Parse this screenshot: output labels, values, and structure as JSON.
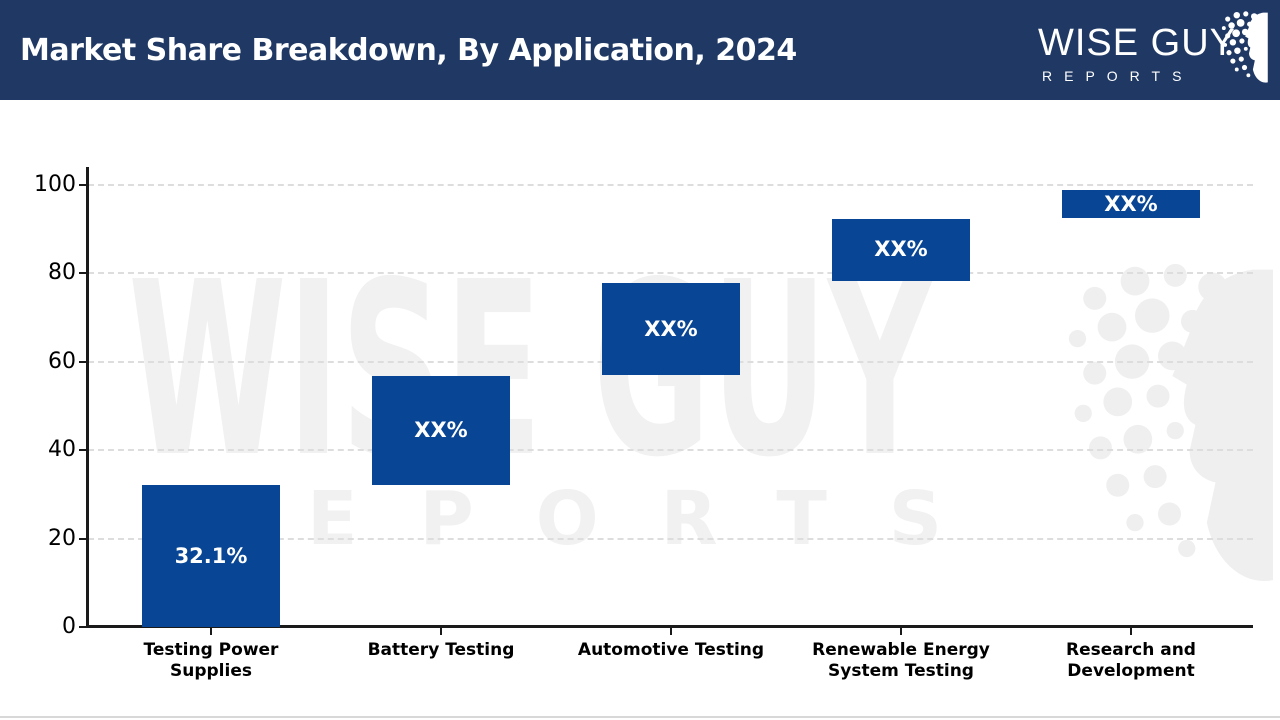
{
  "header": {
    "title": "Market Share Breakdown, By Application, 2024",
    "logo": {
      "line1": "WISE GUY",
      "line2": "REPORTS"
    }
  },
  "watermark": {
    "line1": "WISE GUY",
    "line2": "REPORTS"
  },
  "colors": {
    "header_bg": "#1F3864",
    "bar": "#084594",
    "grid": "#DDDDDD",
    "axis": "#1A1A1A",
    "bar_label": "#FFFFFF",
    "watermark": "#F1F1F1"
  },
  "chart_data": {
    "type": "bar",
    "subtype": "waterfall",
    "title": "Market Share Breakdown, By Application, 2024",
    "categories": [
      "Testing Power Supplies",
      "Battery Testing",
      "Automotive Testing",
      "Renewable Energy System Testing",
      "Research and Development"
    ],
    "segments": [
      {
        "category": "Testing Power Supplies",
        "start": 0,
        "end": 32.1,
        "label": "32.1%"
      },
      {
        "category": "Battery Testing",
        "start": 32.1,
        "end": 56.9,
        "label": "XX%"
      },
      {
        "category": "Automotive Testing",
        "start": 56.9,
        "end": 77.9,
        "label": "XX%"
      },
      {
        "category": "Renewable Energy System Testing",
        "start": 78.3,
        "end": 92.4,
        "label": "XX%"
      },
      {
        "category": "Research and Development",
        "start": 92.5,
        "end": 98.9,
        "label": "XX%"
      }
    ],
    "ylim": [
      0,
      100
    ],
    "yticks": [
      "0",
      "20",
      "40",
      "60",
      "80",
      "100"
    ],
    "xlabel": "",
    "ylabel": "",
    "grid": "horizontal-dashed",
    "legend": "none"
  }
}
